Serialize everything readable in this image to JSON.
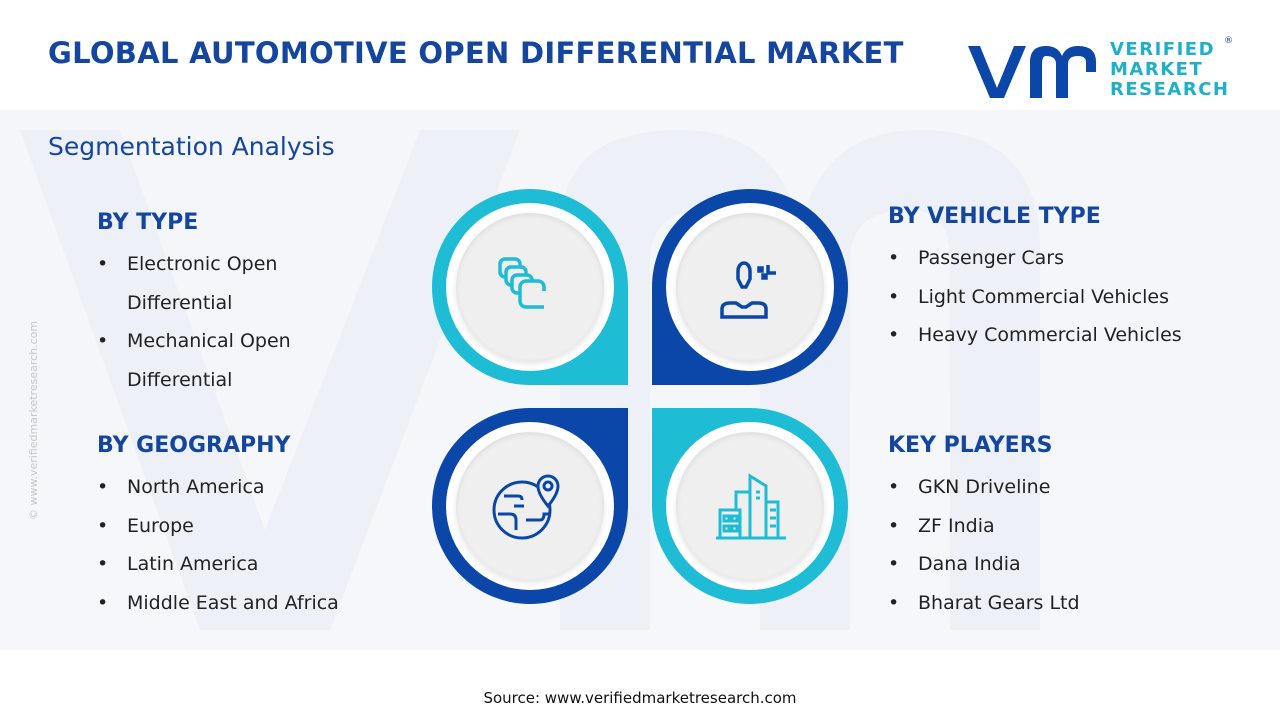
{
  "title": "GLOBAL AUTOMOTIVE OPEN DIFFERENTIAL MARKET",
  "logo": {
    "mark": "vm",
    "line1": "VERIFIED",
    "line2": "MARKET",
    "line3": "RESEARCH",
    "reg": "®"
  },
  "subtitle": "Segmentation Analysis",
  "colors": {
    "dark_blue": "#0a47a9",
    "cyan": "#1fbcd6",
    "title": "#1446a0"
  },
  "sections": {
    "type": {
      "heading": "BY TYPE",
      "icon": "stacked-squares-icon",
      "items": [
        "Electronic Open Differential",
        "Mechanical Open Differential"
      ],
      "lines": [
        [
          "Electronic Open",
          "Differential"
        ],
        [
          "Mechanical Open",
          "Differential"
        ]
      ]
    },
    "vehicle": {
      "heading": "BY VEHICLE TYPE",
      "icon": "person-icon",
      "items": [
        "Passenger Cars",
        "Light Commercial Vehicles",
        "Heavy Commercial Vehicles"
      ]
    },
    "geo": {
      "heading": "BY GEOGRAPHY",
      "icon": "globe-pin-icon",
      "items": [
        "North America",
        "Europe",
        "Latin America",
        "Middle East and Africa"
      ]
    },
    "players": {
      "heading": "KEY PLAYERS",
      "icon": "buildings-icon",
      "items": [
        "GKN Driveline",
        "ZF India",
        "Dana India",
        "Bharat Gears Ltd"
      ]
    }
  },
  "side_text": "© www.verifiedmarketresearch.com",
  "source": "Source: www.verifiedmarketresearch.com"
}
